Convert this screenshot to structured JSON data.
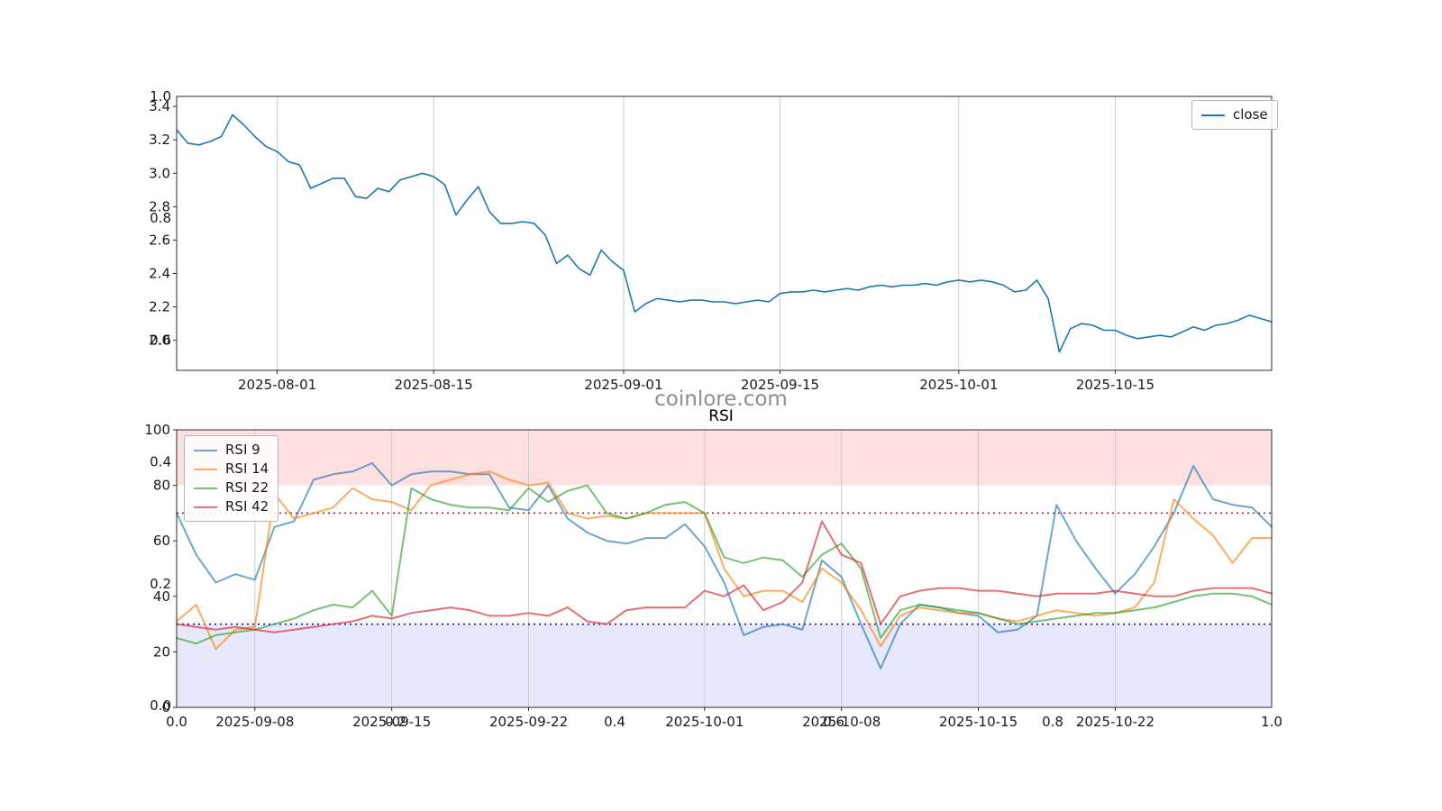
{
  "watermark": "coinlore.com",
  "price_legend": {
    "label": "close",
    "color": "#1f77b4"
  },
  "rsi_legend": [
    {
      "label": "RSI 9",
      "color": "#1f77b4"
    },
    {
      "label": "RSI 14",
      "color": "#ff7f0e"
    },
    {
      "label": "RSI 22",
      "color": "#2ca02c"
    },
    {
      "label": "RSI 42",
      "color": "#d62728"
    }
  ],
  "overlay_axis": {
    "left_ticks": [
      "1.0",
      "0.8",
      "0.6",
      "0.4",
      "0.2",
      "0.0"
    ],
    "bottom_ticks": [
      "0.0",
      "0.2",
      "0.4",
      "0.6",
      "0.8",
      "1.0"
    ]
  },
  "chart_data": [
    {
      "type": "line",
      "title": "",
      "ylim": [
        1.82,
        3.46
      ],
      "yticks": [
        {
          "value": 2.0,
          "label": "2.0"
        },
        {
          "value": 2.2,
          "label": "2.2"
        },
        {
          "value": 2.4,
          "label": "2.4"
        },
        {
          "value": 2.6,
          "label": "2.6"
        },
        {
          "value": 2.8,
          "label": "2.8"
        },
        {
          "value": 3.0,
          "label": "3.0"
        },
        {
          "value": 3.2,
          "label": "3.2"
        },
        {
          "value": 3.4,
          "label": "3.4"
        }
      ],
      "x_start_date": "2025-07-23",
      "x_end_date": "2025-10-29",
      "xticks": [
        {
          "day": 9,
          "label": "2025-08-01"
        },
        {
          "day": 23,
          "label": "2025-08-15"
        },
        {
          "day": 40,
          "label": "2025-09-01"
        },
        {
          "day": 54,
          "label": "2025-09-15"
        },
        {
          "day": 70,
          "label": "2025-10-01"
        },
        {
          "day": 84,
          "label": "2025-10-15"
        }
      ],
      "series": [
        {
          "name": "close",
          "color": "#1f77b4",
          "opacity": 1,
          "values": [
            3.26,
            3.18,
            3.17,
            3.19,
            3.22,
            3.35,
            3.29,
            3.22,
            3.16,
            3.13,
            3.07,
            3.05,
            2.91,
            2.94,
            2.97,
            2.97,
            2.86,
            2.85,
            2.91,
            2.89,
            2.96,
            2.98,
            3.0,
            2.98,
            2.93,
            2.75,
            2.84,
            2.92,
            2.77,
            2.7,
            2.7,
            2.71,
            2.7,
            2.63,
            2.46,
            2.51,
            2.43,
            2.39,
            2.54,
            2.47,
            2.42,
            2.17,
            2.22,
            2.25,
            2.24,
            2.23,
            2.24,
            2.24,
            2.23,
            2.23,
            2.22,
            2.23,
            2.24,
            2.23,
            2.28,
            2.29,
            2.29,
            2.3,
            2.29,
            2.3,
            2.31,
            2.3,
            2.32,
            2.33,
            2.32,
            2.33,
            2.33,
            2.34,
            2.33,
            2.35,
            2.36,
            2.35,
            2.36,
            2.35,
            2.33,
            2.29,
            2.3,
            2.36,
            2.25,
            1.93,
            2.07,
            2.1,
            2.09,
            2.06,
            2.06,
            2.03,
            2.01,
            2.02,
            2.03,
            2.02,
            2.05,
            2.08,
            2.06,
            2.09,
            2.1,
            2.12,
            2.15,
            2.13,
            2.11
          ]
        }
      ]
    },
    {
      "type": "line",
      "title": "RSI",
      "ylim": [
        0,
        100
      ],
      "yticks": [
        {
          "value": 0,
          "label": "0"
        },
        {
          "value": 20,
          "label": "20"
        },
        {
          "value": 40,
          "label": "40"
        },
        {
          "value": 60,
          "label": "60"
        },
        {
          "value": 80,
          "label": "80"
        },
        {
          "value": 100,
          "label": "100"
        }
      ],
      "x_start_date": "2025-09-04",
      "x_end_date": "2025-10-30",
      "xticks": [
        {
          "day": 4,
          "label": "2025-09-08"
        },
        {
          "day": 11,
          "label": "2025-09-15"
        },
        {
          "day": 18,
          "label": "2025-09-22"
        },
        {
          "day": 27,
          "label": "2025-10-01"
        },
        {
          "day": 34,
          "label": "2025-10-08"
        },
        {
          "day": 41,
          "label": "2025-10-15"
        },
        {
          "day": 48,
          "label": "2025-10-22"
        }
      ],
      "bands": [
        {
          "from": 80,
          "to": 100,
          "color": "rgba(255,0,0,0.12)",
          "name": "overbought-band"
        },
        {
          "from": 0,
          "to": 30,
          "color": "rgba(80,80,235,0.13)",
          "name": "oversold-band"
        }
      ],
      "hlines": [
        {
          "value": 70,
          "color": "#d40000",
          "dash": "2 4",
          "name": "overbought-threshold"
        },
        {
          "value": 30,
          "color": "#0000a0",
          "dash": "2 4",
          "name": "oversold-threshold"
        }
      ],
      "series": [
        {
          "name": "RSI 9",
          "color": "#1f77b4",
          "opacity": 0.65,
          "values": [
            70,
            55,
            45,
            48,
            46,
            65,
            67,
            82,
            84,
            85,
            88,
            80,
            84,
            85,
            85,
            84,
            84,
            72,
            71,
            80,
            68,
            63,
            60,
            59,
            61,
            61,
            66,
            58,
            45,
            26,
            29,
            30,
            28,
            53,
            47,
            30,
            14,
            30,
            37,
            36,
            34,
            33,
            27,
            28,
            33,
            73,
            60,
            50,
            41,
            48,
            58,
            70,
            87,
            75,
            73,
            72,
            65
          ]
        },
        {
          "name": "RSI 14",
          "color": "#ff7f0e",
          "opacity": 0.65,
          "values": [
            31,
            37,
            21,
            28,
            29,
            77,
            68,
            70,
            72,
            79,
            75,
            74,
            71,
            80,
            82,
            84,
            85,
            82,
            80,
            81,
            70,
            68,
            69,
            68,
            70,
            70,
            70,
            70,
            50,
            40,
            42,
            42,
            38,
            50,
            45,
            35,
            22,
            33,
            36,
            35,
            34,
            34,
            32,
            31,
            33,
            35,
            34,
            33,
            34,
            36,
            45,
            75,
            68,
            62,
            52,
            61,
            61
          ]
        },
        {
          "name": "RSI 22",
          "color": "#2ca02c",
          "opacity": 0.65,
          "values": [
            25,
            23,
            26,
            27,
            28,
            30,
            32,
            35,
            37,
            36,
            42,
            33,
            79,
            75,
            73,
            72,
            72,
            71,
            79,
            74,
            78,
            80,
            70,
            68,
            70,
            73,
            74,
            70,
            54,
            52,
            54,
            53,
            47,
            55,
            59,
            50,
            25,
            35,
            37,
            36,
            35,
            34,
            32,
            30,
            31,
            32,
            33,
            34,
            34,
            35,
            36,
            38,
            40,
            41,
            41,
            40,
            37
          ]
        },
        {
          "name": "RSI 42",
          "color": "#d62728",
          "opacity": 0.65,
          "values": [
            30,
            29,
            28,
            29,
            28,
            27,
            28,
            29,
            30,
            31,
            33,
            32,
            34,
            35,
            36,
            35,
            33,
            33,
            34,
            33,
            36,
            31,
            30,
            35,
            36,
            36,
            36,
            42,
            40,
            44,
            35,
            38,
            45,
            67,
            55,
            52,
            30,
            40,
            42,
            43,
            43,
            42,
            42,
            41,
            40,
            41,
            41,
            41,
            42,
            41,
            40,
            40,
            42,
            43,
            43,
            43,
            41
          ]
        }
      ]
    }
  ]
}
